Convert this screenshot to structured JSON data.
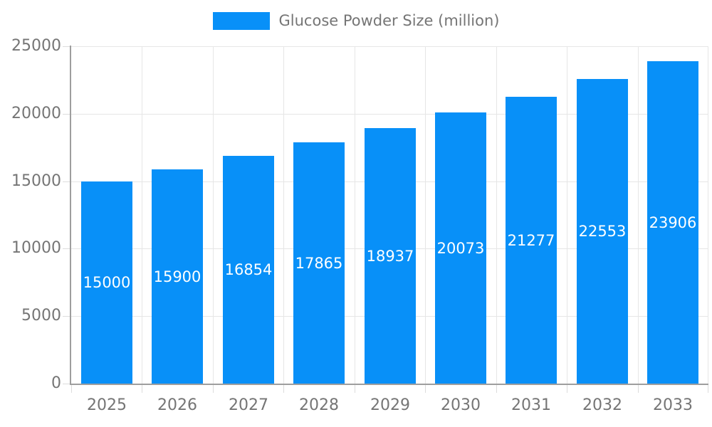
{
  "chart": {
    "legend": {
      "label": "Glucose Powder Size (million)"
    }
  },
  "chart_data": {
    "type": "bar",
    "title": "",
    "categories": [
      "2025",
      "2026",
      "2027",
      "2028",
      "2029",
      "2030",
      "2031",
      "2032",
      "2033"
    ],
    "series": [
      {
        "name": "Glucose Powder Size (million)",
        "values": [
          15000,
          15900,
          16854,
          17865,
          18937,
          20073,
          21277,
          22553,
          23906
        ]
      }
    ],
    "xlabel": "",
    "ylabel": "",
    "ylim": [
      0,
      25000
    ],
    "yticks": [
      0,
      5000,
      10000,
      15000,
      20000,
      25000
    ],
    "grid": true,
    "legend_position": "top",
    "value_labels": {
      "position": "inside-center",
      "color": "#ffffff"
    },
    "colors": {
      "bar": "#0890f8",
      "axis": "#9e9e9e",
      "grid": "#e6e6e6",
      "tick": "#dcdcdc",
      "tick_label": "#757575",
      "background": "#ffffff"
    }
  }
}
